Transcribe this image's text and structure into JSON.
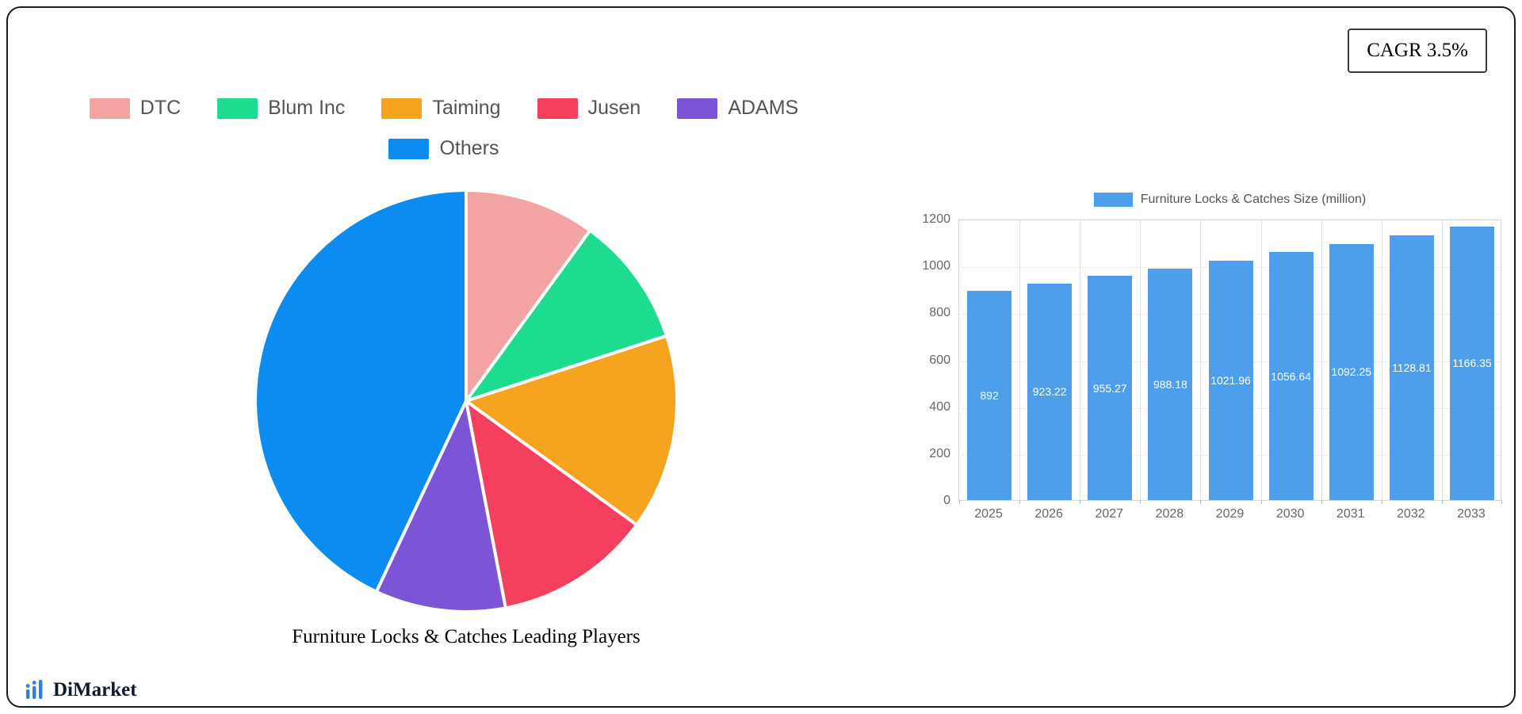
{
  "badge": {
    "label": "CAGR 3.5%"
  },
  "brand": {
    "name": "DiMarket"
  },
  "chart_data": [
    {
      "type": "pie",
      "title": "Furniture Locks & Catches Leading Players",
      "legend_position": "top",
      "labels": [
        "DTC",
        "Blum Inc",
        "Taiming",
        "Jusen",
        "ADAMS",
        "Others"
      ],
      "values": [
        10,
        10,
        15,
        12,
        10,
        43
      ],
      "colors": [
        "#F4A3A3",
        "#1EDC8F",
        "#F6A41F",
        "#F43F5E",
        "#7B55D6",
        "#0C8CF0"
      ]
    },
    {
      "type": "bar",
      "title": "Furniture Locks & Catches Size (million)",
      "categories": [
        "2025",
        "2026",
        "2027",
        "2028",
        "2029",
        "2030",
        "2031",
        "2032",
        "2033"
      ],
      "values": [
        892,
        923.22,
        955.27,
        988.18,
        1021.96,
        1056.64,
        1092.25,
        1128.81,
        1166.35
      ],
      "bar_color": "#4D9EEB",
      "ylim": [
        0,
        1200
      ],
      "yticks": [
        0,
        200,
        400,
        600,
        800,
        1000,
        1200
      ],
      "grid": true,
      "legend_position": "top",
      "label_color": "#ffffff"
    }
  ]
}
